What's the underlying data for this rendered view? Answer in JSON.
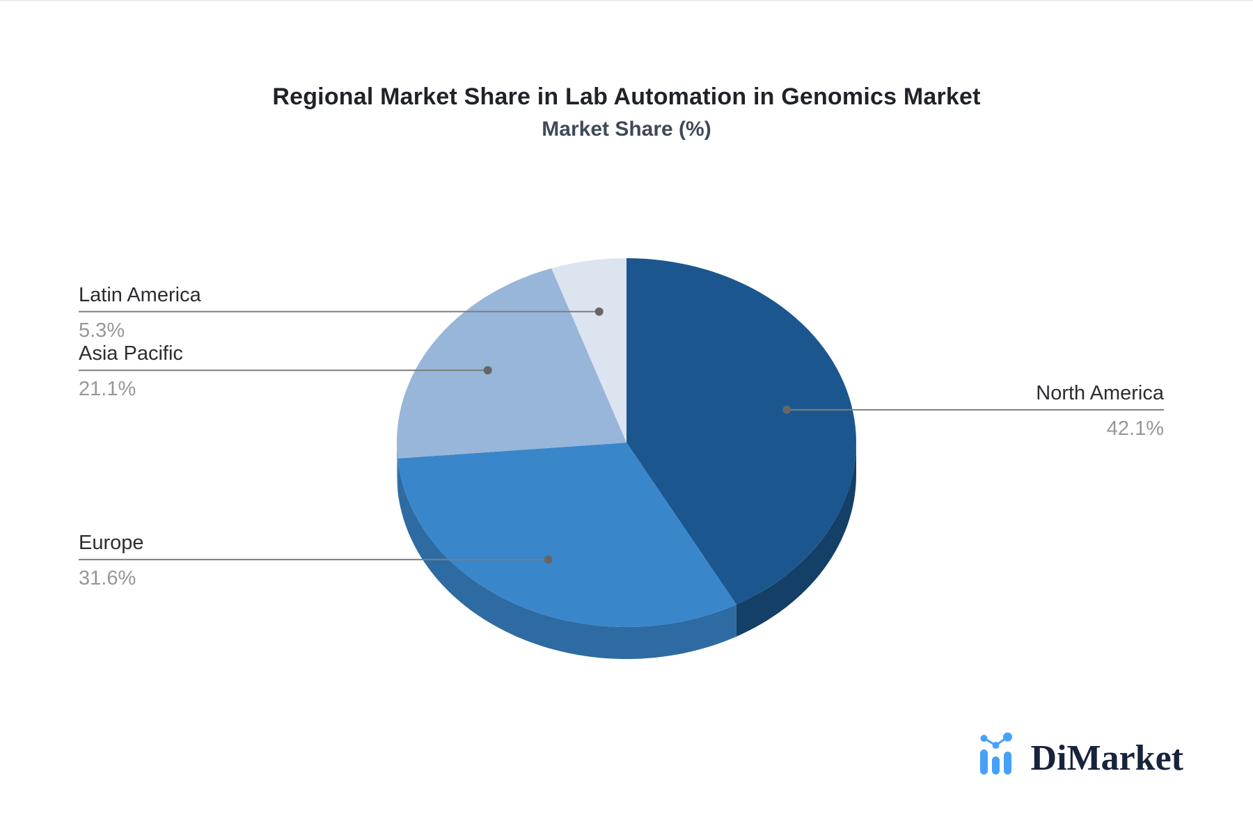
{
  "title": "Regional Market Share in Lab Automation in Genomics Market",
  "subtitle": "Market Share (%)",
  "brand": {
    "name": "DiMarket",
    "icon": "bar-line-chart-icon",
    "icon_color": "#46a1f8",
    "text_color": "#18233c"
  },
  "chart_data": {
    "type": "pie",
    "title": "Regional Market Share in Lab Automation in Genomics Market",
    "subtitle": "Market Share (%)",
    "unit": "%",
    "effect": "3d",
    "direction": "clockwise",
    "start_angle_deg": 0,
    "legend_position": "none",
    "label_style": "leader-lines",
    "labels": [
      "North America",
      "Europe",
      "Asia Pacific",
      "Latin America"
    ],
    "values": [
      42.1,
      31.6,
      21.1,
      5.3
    ],
    "display_values": [
      "42.1%",
      "31.6%",
      "21.1%",
      "5.3%"
    ],
    "colors": [
      "#1b578e",
      "#3a86cb",
      "#97b6d9",
      "#dce4f0"
    ],
    "side_colors": [
      "#143f66",
      "#2e6ba2",
      "#7da0c2",
      "#b6c4d8"
    ],
    "leader_line_color": "#7d7d7d",
    "leader_dot_color": "#666666"
  }
}
